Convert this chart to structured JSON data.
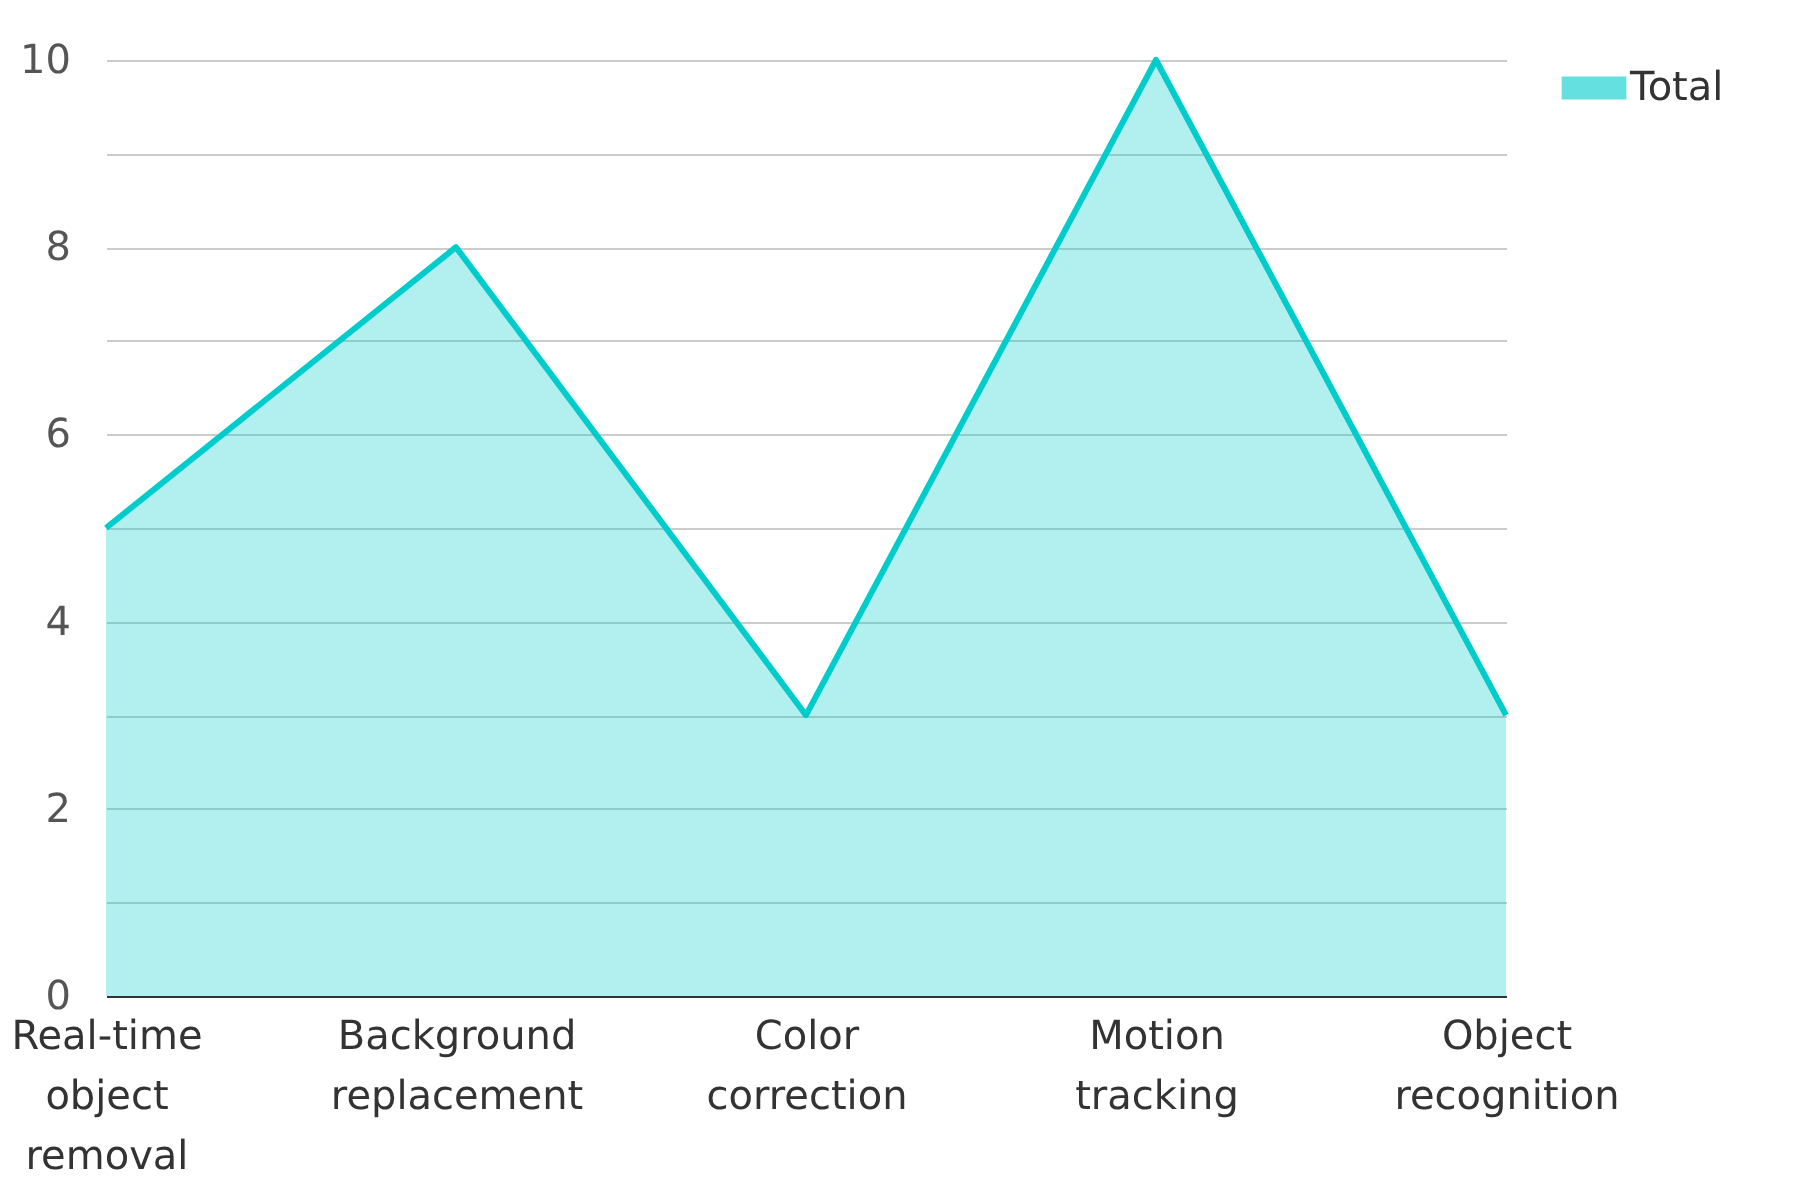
{
  "chart_data": {
    "type": "area",
    "categories": [
      "Real-time object removal",
      "Background replacement",
      "Color correction",
      "Motion tracking",
      "Object recognition"
    ],
    "series": [
      {
        "name": "Total",
        "color": "#00cccc",
        "values": [
          5,
          8,
          3,
          10,
          3
        ]
      }
    ],
    "ylim": [
      0,
      10
    ],
    "yticks": [
      0,
      {
        "value": 1,
        "label": null
      },
      2,
      {
        "value": 3,
        "label": null
      },
      4,
      {
        "value": 5,
        "label": null
      },
      6,
      {
        "value": 7,
        "label": null
      },
      8,
      {
        "value": 9,
        "label": null
      },
      10
    ],
    "grid": "y",
    "legend": "top right"
  }
}
